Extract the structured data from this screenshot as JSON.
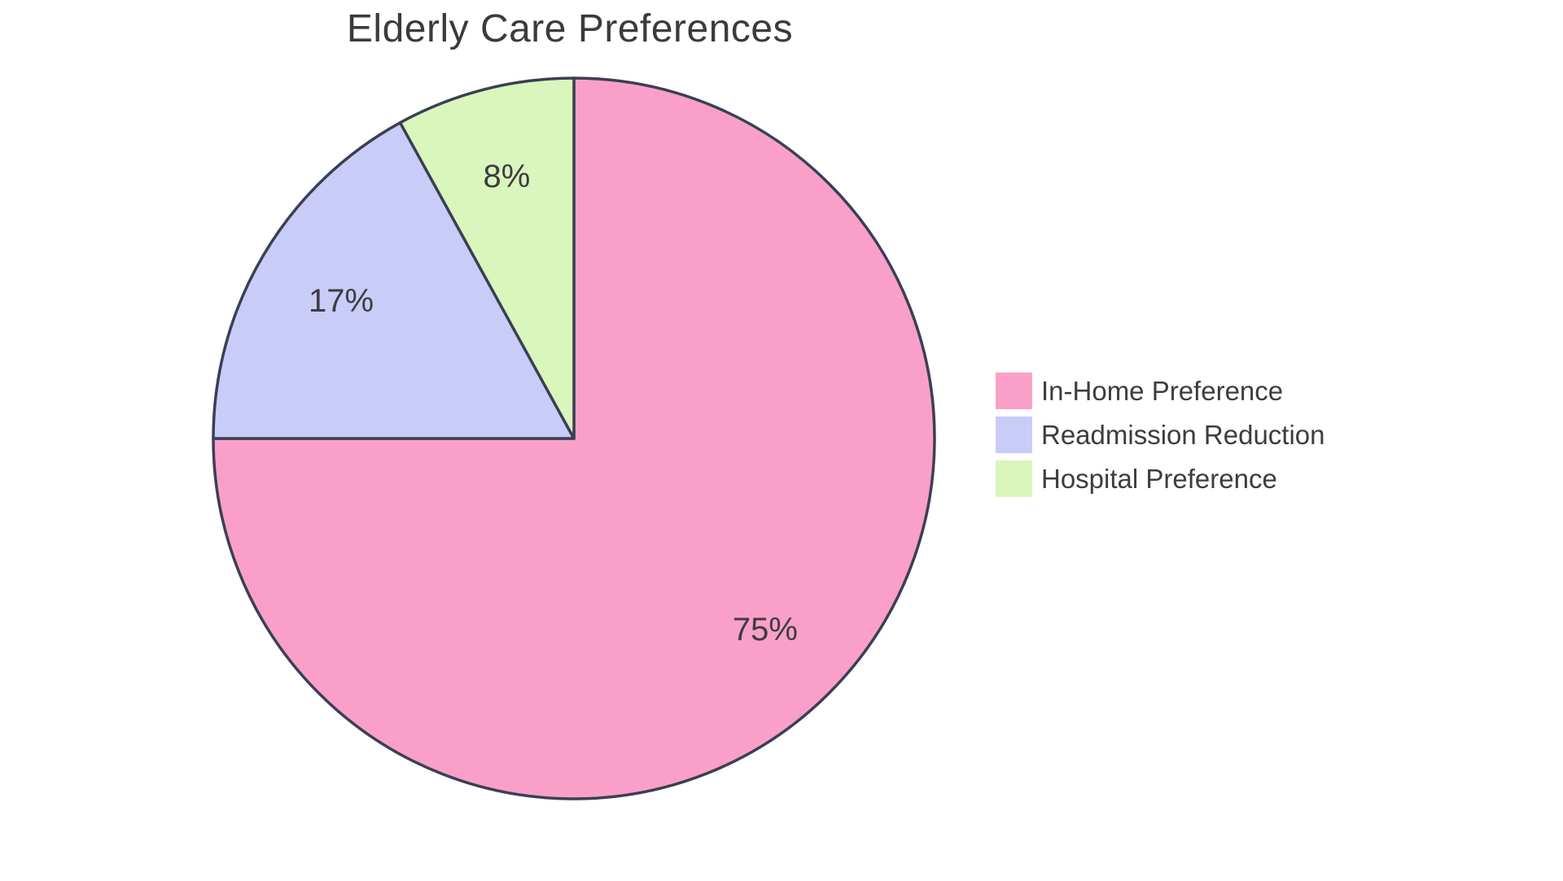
{
  "chart_data": {
    "type": "pie",
    "title": "Elderly Care Preferences",
    "slices": [
      {
        "label": "In-Home Preference",
        "value": 75,
        "percent_label": "75%",
        "color": "#FAA0C8"
      },
      {
        "label": "Readmission Reduction",
        "value": 17,
        "percent_label": "17%",
        "color": "#C9CCF6"
      },
      {
        "label": "Hospital Preference",
        "value": 8,
        "percent_label": "8%",
        "color": "#D9F6BD"
      }
    ],
    "start_angle": "top",
    "direction": "clockwise",
    "slice_border_color": "#3B3F54",
    "text_color": "#3C3C43",
    "background_color": "#FFFFFF",
    "legend_position": "right",
    "percent_label_distance": 0.75
  }
}
